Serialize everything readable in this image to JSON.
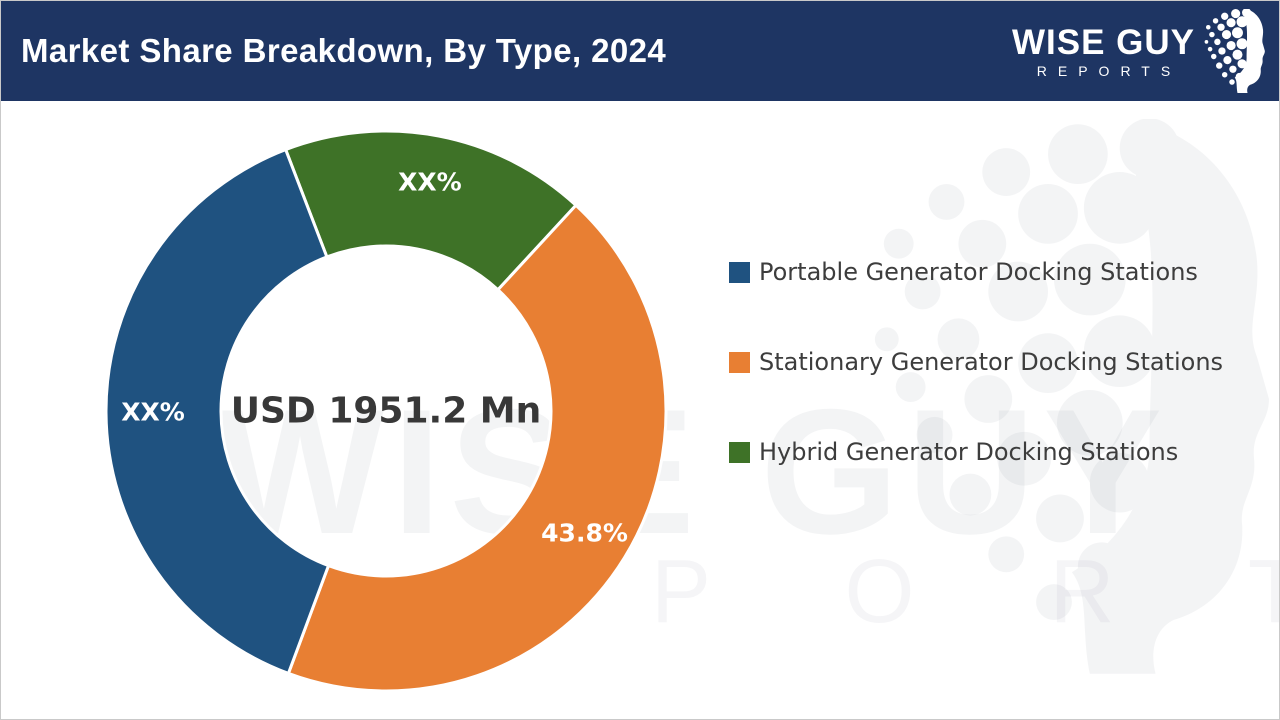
{
  "page": {
    "border_color": "#c9c9c9",
    "background": "#ffffff"
  },
  "header": {
    "background": "#1e3563",
    "title": "Market Share Breakdown, By Type, 2024",
    "logo": {
      "line1": "WISE GUY",
      "line2": "REPORTS"
    }
  },
  "watermark": {
    "line1": "WISE GUY",
    "line2": "R E P O R T S"
  },
  "chart_data": {
    "type": "pie",
    "subtype": "donut",
    "title": "Market Share Breakdown, By Type, 2024",
    "center_label": "USD 1951.2 Mn",
    "start_angle_deg": 111,
    "direction": "clockwise",
    "legend_position": "right",
    "segments": [
      {
        "name": "Hybrid Generator Docking Stations",
        "value_pct": 17.7,
        "display_label": "XX%",
        "color": "#3e7227"
      },
      {
        "name": "Stationary Generator Docking Stations",
        "value_pct": 43.8,
        "display_label": "43.8%",
        "color": "#e87f33"
      },
      {
        "name": "Portable Generator Docking Stations",
        "value_pct": 38.5,
        "display_label": "XX%",
        "color": "#1f5280"
      }
    ]
  },
  "legend": {
    "items": [
      {
        "label": "Portable Generator Docking Stations",
        "color": "#1f5280"
      },
      {
        "label": "Stationary Generator Docking Stations",
        "color": "#e87f33"
      },
      {
        "label": "Hybrid Generator Docking Stations",
        "color": "#3e7227"
      }
    ]
  }
}
